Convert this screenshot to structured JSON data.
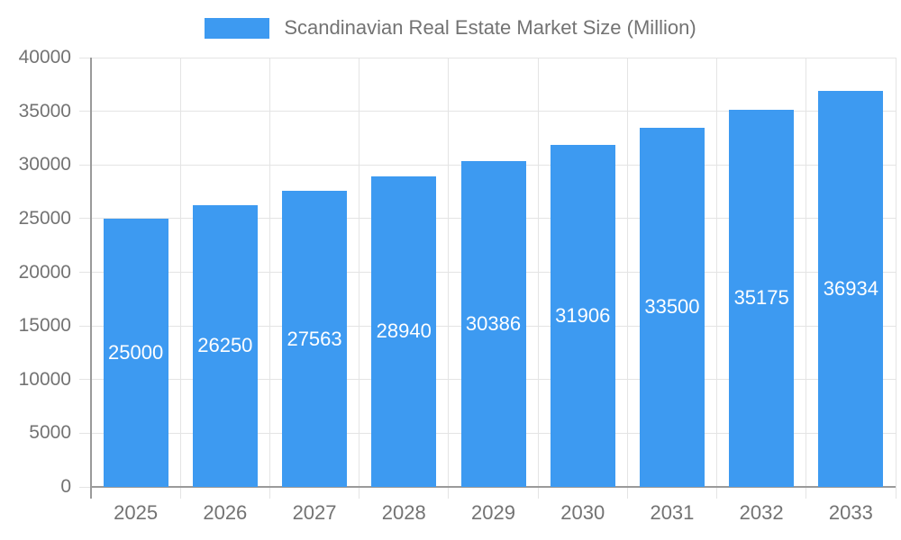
{
  "legend": {
    "label": "Scandinavian Real Estate Market Size (Million)"
  },
  "colors": {
    "bar": "#3D9AF1",
    "grid": "#E4E4E4",
    "axis": "#9A9A9A",
    "tick_text": "#737373",
    "value_label": "#FFFFFF",
    "background": "#FFFFFF"
  },
  "chart_data": {
    "type": "bar",
    "title": "Scandinavian Real Estate Market Size (Million)",
    "categories": [
      "2025",
      "2026",
      "2027",
      "2028",
      "2029",
      "2030",
      "2031",
      "2032",
      "2033"
    ],
    "values": [
      25000,
      26250,
      27563,
      28940,
      30386,
      31906,
      33500,
      35175,
      36934
    ],
    "series_name": "Scandinavian Real Estate Market Size (Million)",
    "xlabel": "",
    "ylabel": "",
    "ylim": [
      0,
      40000
    ],
    "ytick_step": 5000,
    "ytick_labels": [
      "0",
      "5000",
      "10000",
      "15000",
      "20000",
      "25000",
      "30000",
      "35000",
      "40000"
    ],
    "grid": true,
    "legend_position": "top",
    "value_label_position": "inside-center"
  }
}
